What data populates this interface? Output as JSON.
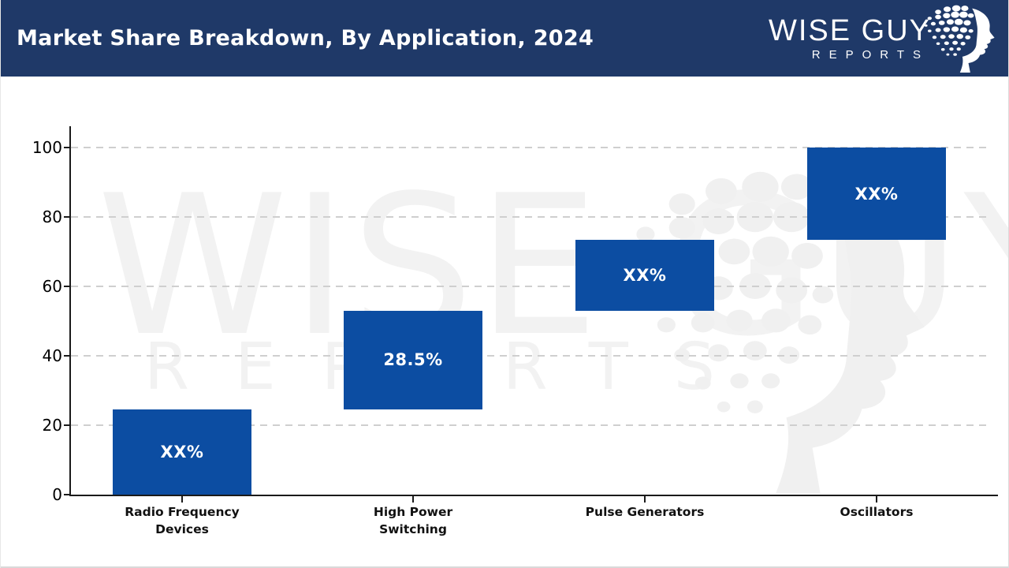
{
  "header": {
    "title": "Market Share Breakdown, By Application, 2024",
    "bg_color": "#1f3968",
    "brand": {
      "line1": "WISE GUY",
      "line2": "REPORTS"
    }
  },
  "watermark": {
    "line1": "WISE GUY",
    "line2": "REPORTS"
  },
  "chart_data": {
    "type": "bar",
    "subtype": "waterfall",
    "title": "Market Share Breakdown, By Application, 2024",
    "categories": [
      "Radio Frequency Devices",
      "High Power Switching",
      "Pulse Generators",
      "Oscillators"
    ],
    "segments": [
      {
        "label": "Radio Frequency\nDevices",
        "start": 0,
        "end": 24.5,
        "value": 24.5,
        "bar_label": "XX%"
      },
      {
        "label": "High Power\nSwitching",
        "start": 24.5,
        "end": 53.0,
        "value": 28.5,
        "bar_label": "28.5%"
      },
      {
        "label": "Pulse Generators",
        "start": 53.0,
        "end": 73.4,
        "value": 20.4,
        "bar_label": "XX%"
      },
      {
        "label": "Oscillators",
        "start": 73.4,
        "end": 100,
        "value": 26.6,
        "bar_label": "XX%"
      }
    ],
    "y_ticks": [
      0,
      20,
      40,
      60,
      80,
      100
    ],
    "ylim": [
      0,
      100
    ],
    "xlabel": "",
    "ylabel": "",
    "grid": "dashed-horizontal",
    "legend": "none",
    "bar_color": "#0c4da2",
    "bar_label_color": "#ffffff",
    "axis_color": "#1a1a1a",
    "gridline_color": "#cfcfcf"
  }
}
